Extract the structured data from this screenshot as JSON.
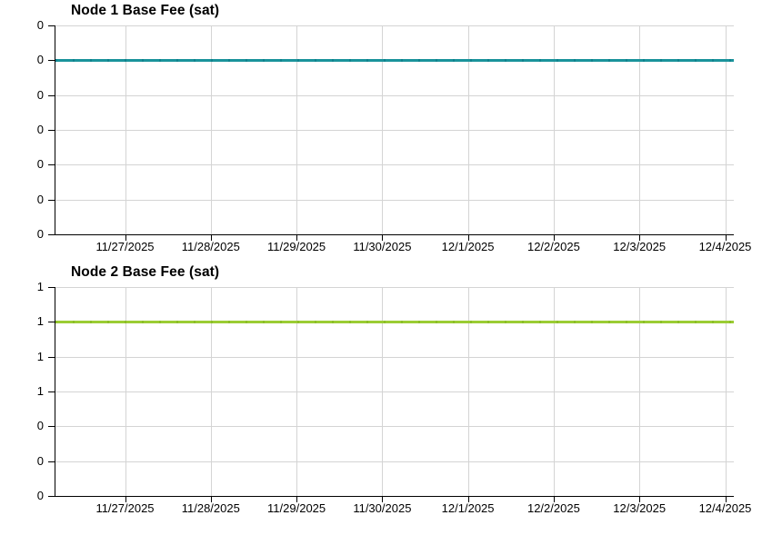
{
  "page": {
    "background_color": "#ffffff",
    "text_color": "#000000",
    "grid_color": "#d4d4d4",
    "axis_color": "#000000"
  },
  "chart_data": [
    {
      "type": "line",
      "title": "Node 1 Base Fee (sat)",
      "xlabel": "",
      "ylabel": "",
      "x_tick_labels": [
        "11/27/2025",
        "11/28/2025",
        "11/29/2025",
        "11/30/2025",
        "12/1/2025",
        "12/2/2025",
        "12/3/2025",
        "12/4/2025"
      ],
      "y_tick_labels": [
        "0",
        "0",
        "0",
        "0",
        "0",
        "0",
        "0"
      ],
      "grid": true,
      "legend_position": "none",
      "series": [
        {
          "name": "Node 1 Base Fee",
          "constant_value": 0,
          "values": [
            0,
            0,
            0,
            0,
            0,
            0,
            0,
            0
          ],
          "color": "#1a939b",
          "marker_color": "#0f828d",
          "line_at_y_tick_index": 1
        }
      ]
    },
    {
      "type": "line",
      "title": "Node 2 Base Fee (sat)",
      "xlabel": "",
      "ylabel": "",
      "x_tick_labels": [
        "11/27/2025",
        "11/28/2025",
        "11/29/2025",
        "11/30/2025",
        "12/1/2025",
        "12/2/2025",
        "12/3/2025",
        "12/4/2025"
      ],
      "y_tick_labels": [
        "1",
        "1",
        "1",
        "1",
        "0",
        "0",
        "0"
      ],
      "grid": true,
      "legend_position": "none",
      "series": [
        {
          "name": "Node 2 Base Fee",
          "constant_value": 1,
          "values": [
            1,
            1,
            1,
            1,
            1,
            1,
            1,
            1
          ],
          "color": "#9bcc34",
          "marker_color": "#8cbd28",
          "line_at_y_tick_index": 1
        }
      ]
    }
  ]
}
